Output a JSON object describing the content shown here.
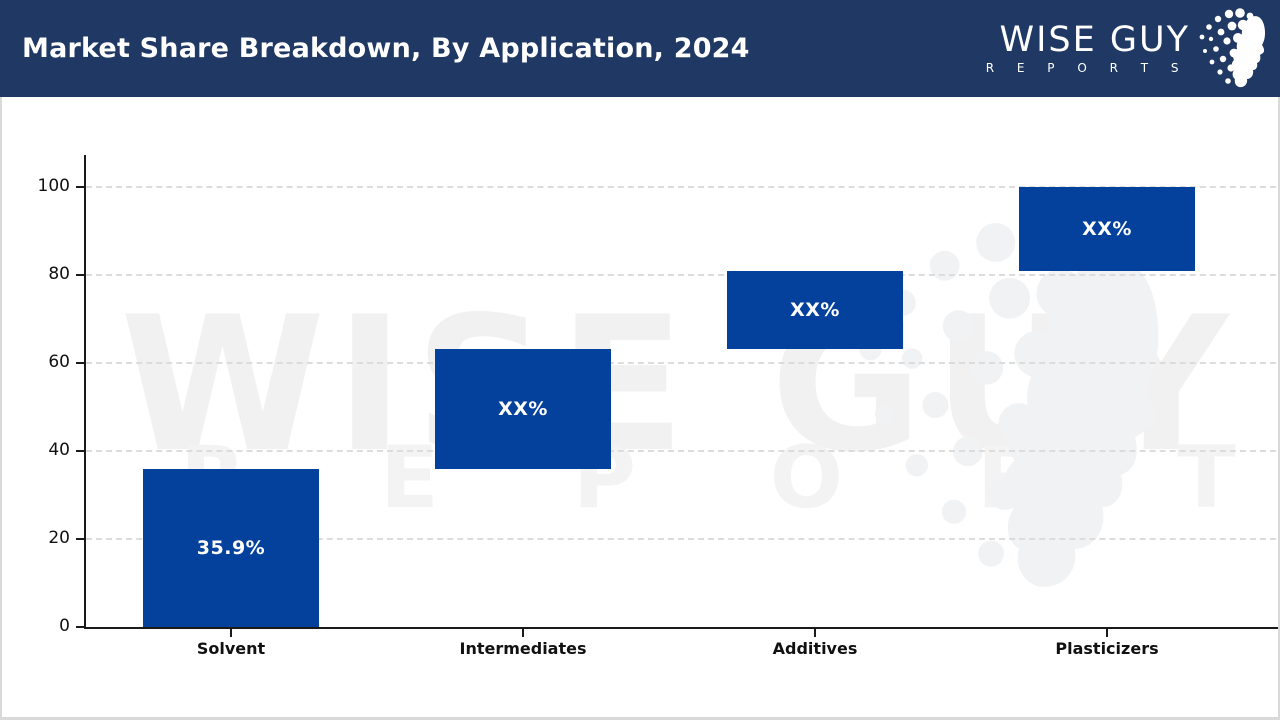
{
  "header": {
    "title": "Market Share Breakdown, By Application, 2024",
    "logo": {
      "primary": "WISE GUY",
      "secondary": "R E P O R T S"
    }
  },
  "watermark": {
    "primary": "WISE GUY",
    "secondary": "R E P O R T S"
  },
  "colors": {
    "header_bg": "#1f3864",
    "bar_fill": "#04419c",
    "bar_label": "#ffffff",
    "axis": "#1a1a1a",
    "gridline": "#dcdcdc",
    "frame_border": "#d9d9d9",
    "watermark": "#f1f1f2"
  },
  "chart_data": {
    "type": "bar",
    "subtype": "waterfall",
    "title": "Market Share Breakdown, By Application, 2024",
    "categories": [
      "Solvent",
      "Intermediates",
      "Additives",
      "Plasticizers"
    ],
    "segments": [
      {
        "category": "Solvent",
        "start": 0,
        "end": 35.9,
        "label": "35.9%"
      },
      {
        "category": "Intermediates",
        "start": 35.9,
        "end": 63.1,
        "label": "XX%"
      },
      {
        "category": "Additives",
        "start": 63.1,
        "end": 81.0,
        "label": "XX%"
      },
      {
        "category": "Plasticizers",
        "start": 81.0,
        "end": 100.0,
        "label": "XX%"
      }
    ],
    "xlabel": "",
    "ylabel": "",
    "ylim": [
      0,
      107
    ],
    "yticks": [
      0,
      20,
      40,
      60,
      80,
      100
    ],
    "grid": "horizontal-dashed",
    "legend": "none",
    "bar_color": "#04419c"
  }
}
